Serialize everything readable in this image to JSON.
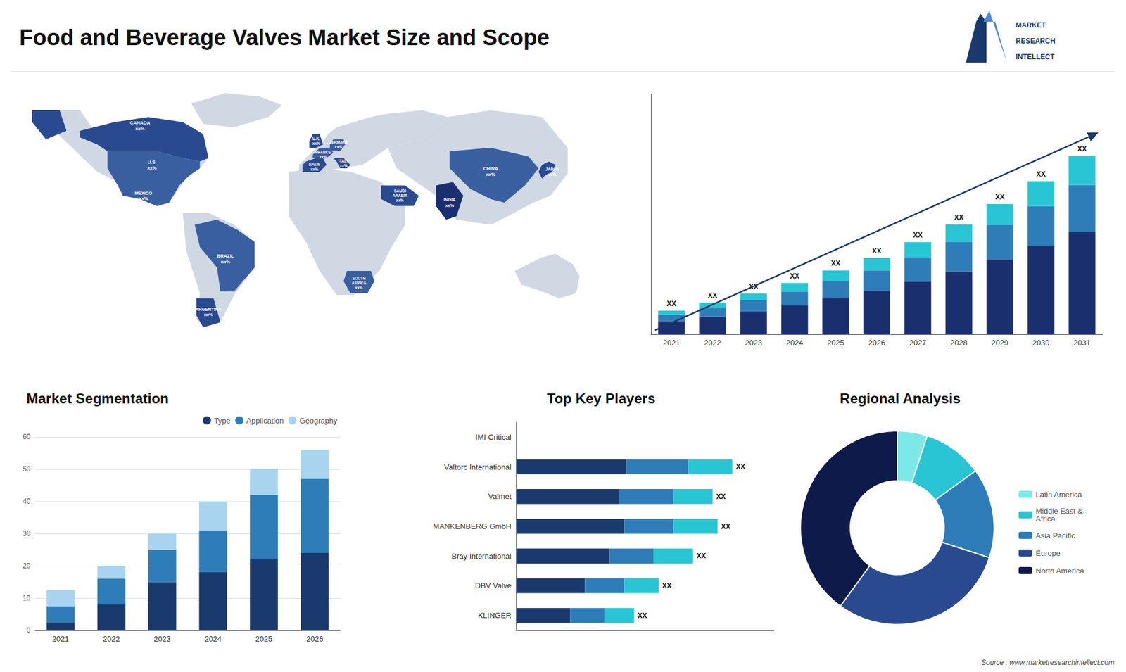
{
  "title": "Food and Beverage Valves Market Size and Scope",
  "annotations": [
    "MARKET",
    "RESEARCH",
    "INTELLECT",
    "Source : www.marketresearchintellect.com"
  ],
  "chart_data": [
    {
      "type": "map",
      "xlim": [
        -180,
        180
      ],
      "ylim": [
        -65,
        85
      ],
      "tick_labels": false,
      "annotations": [
        "CANADA\nxx%",
        "U.S.\nxx%",
        "MEXICO\nxx%",
        "BRAZIL\nxx%",
        "ARGENTINA\nxx%",
        "U.K.\nxx%",
        "FRANCE\nxx%",
        "SPAIN\nxx%",
        "GERMANY\nxx%",
        "ITALY\nxx%",
        "SAUDI\nARABIA\nxx%",
        "SOUTH\nAFRICA\nxx%",
        "CHINA\nxx%",
        "INDIA\nxx%",
        "JAPAN\nxx%"
      ]
    },
    {
      "type": "bar",
      "stacked": true,
      "categories": [
        "2021",
        "2022",
        "2023",
        "2024",
        "2025",
        "2026",
        "2027",
        "2028",
        "2029",
        "2030",
        "2031"
      ],
      "series": [
        {
          "color": "#1a2f6e",
          "values": [
            1.0,
            1.35,
            1.75,
            2.2,
            2.75,
            3.3,
            4.0,
            4.8,
            5.7,
            6.7,
            7.8
          ]
        },
        {
          "color": "#2e7db8",
          "values": [
            0.5,
            0.65,
            0.85,
            1.05,
            1.3,
            1.55,
            1.85,
            2.2,
            2.6,
            3.05,
            3.55
          ]
        },
        {
          "color": "#29c5d4",
          "values": [
            0.3,
            0.4,
            0.5,
            0.65,
            0.8,
            0.95,
            1.15,
            1.35,
            1.6,
            1.9,
            2.2
          ]
        }
      ],
      "ylim": [
        0,
        18.2925
      ],
      "tick_labels": "x",
      "grid": false,
      "annotations": [
        "XX",
        "XX",
        "XX",
        "XX",
        "XX",
        "XX",
        "XX",
        "XX",
        "XX",
        "XX",
        "XX"
      ]
    },
    {
      "type": "bar",
      "title": "Market Segmentation",
      "stacked": true,
      "categories": [
        "2021",
        "2022",
        "2023",
        "2024",
        "2025",
        "2026"
      ],
      "series": [
        {
          "name": "Type",
          "color": "#1a3a6e",
          "values": [
            2.5,
            8,
            15,
            18,
            22,
            24
          ]
        },
        {
          "name": "Application",
          "color": "#2e7db8",
          "values": [
            5,
            8,
            10,
            13,
            20,
            23
          ]
        },
        {
          "name": "Geography",
          "color": "#a8d4f0",
          "values": [
            5,
            4,
            5,
            9,
            8,
            9
          ]
        }
      ],
      "ylim": [
        0,
        60
      ],
      "yticks": [
        0,
        10,
        20,
        30,
        40,
        50,
        60
      ],
      "grid": true,
      "legend": "upper right"
    },
    {
      "type": "bar",
      "title": "Top Key Players",
      "orientation": "horizontal",
      "stacked": true,
      "categories": [
        "IMI Critical",
        "Valtorc International",
        "Valmet",
        "MANKENBERG GmbH",
        "Bray International",
        "DBV Valve",
        "KLINGER"
      ],
      "series": [
        {
          "color": "#1a3a6e",
          "values": [
            0,
            45,
            42,
            44,
            38,
            28,
            22
          ]
        },
        {
          "color": "#2e7db8",
          "values": [
            0,
            25,
            22,
            20,
            18,
            16,
            14
          ]
        },
        {
          "color": "#29c5d4",
          "values": [
            0,
            18,
            16,
            18,
            16,
            14,
            12
          ]
        }
      ],
      "xlim": [
        0,
        105
      ],
      "tick_labels": "y",
      "grid": false,
      "annotations": [
        null,
        "XX",
        "XX",
        "XX",
        "XX",
        "XX",
        "XX"
      ]
    },
    {
      "type": "pie",
      "title": "Regional Analysis",
      "categories": [
        "Latin America",
        "Middle East &\nAfrica",
        "Asia Pacific",
        "Europe",
        "North America"
      ],
      "values": [
        5,
        10,
        15,
        30,
        40
      ],
      "colors": [
        "#7de8e8",
        "#29c5d4",
        "#2e7db8",
        "#2a4a90",
        "#0d1a4a"
      ],
      "legend": "right"
    }
  ]
}
